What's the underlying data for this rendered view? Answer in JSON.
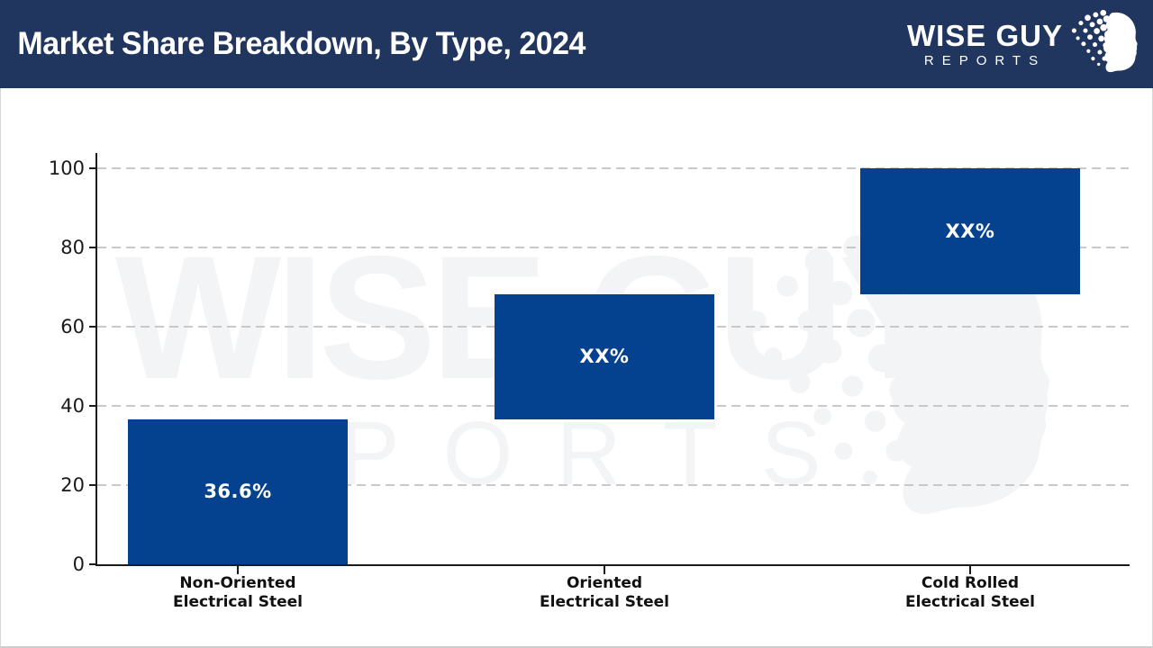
{
  "header": {
    "title": "Market Share Breakdown, By Type, 2024",
    "logo": {
      "brand_line1": "WISE GUY",
      "brand_line2": "REPORTS",
      "mark": "face-of-dots-logo"
    }
  },
  "watermark": {
    "brand_line1": "WISE GUY",
    "brand_line2": "REPORTS"
  },
  "chart_data": {
    "type": "bar",
    "subtype": "waterfall",
    "title": "Market Share Breakdown, By Type, 2024",
    "categories": [
      {
        "line1": "Non-Oriented",
        "line2": "Electrical Steel"
      },
      {
        "line1": "Oriented",
        "line2": "Electrical Steel"
      },
      {
        "line1": "Cold Rolled",
        "line2": "Electrical Steel"
      }
    ],
    "segments": [
      {
        "category": "Non-Oriented Electrical Steel",
        "start": 0,
        "end": 36.6,
        "label": "36.6%"
      },
      {
        "category": "Oriented Electrical Steel",
        "start": 36.6,
        "end": 68.2,
        "label": "XX%"
      },
      {
        "category": "Cold Rolled Electrical Steel",
        "start": 68.2,
        "end": 100,
        "label": "XX%"
      }
    ],
    "ylim": [
      0,
      100
    ],
    "yticks": [
      "0",
      "20",
      "40",
      "60",
      "80",
      "100"
    ],
    "xlabel": "",
    "ylabel": "",
    "legend": "none",
    "grid": "horizontal-dashed",
    "bar_color": "#04418f",
    "bar_label_color": "#ffffff"
  },
  "colors": {
    "header_bg": "#21365e",
    "bar": "#04418f",
    "grid": "#c9c9c9",
    "axis": "#1a1a1a",
    "watermark": "#f3f4f6",
    "frame_border": "#cccccc"
  }
}
